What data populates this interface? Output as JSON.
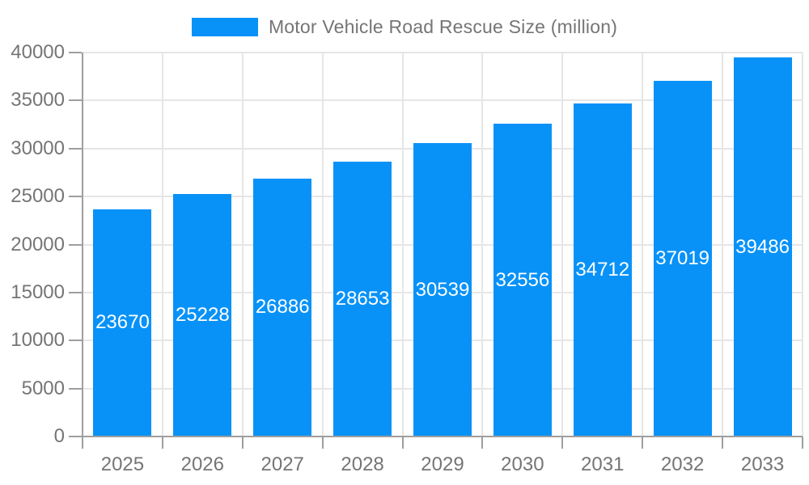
{
  "legend": {
    "position": "top",
    "swatch_color": "#0892f8"
  },
  "chart_data": {
    "type": "bar",
    "title": "",
    "series_name": "Motor Vehicle Road Rescue Size (million)",
    "categories": [
      "2025",
      "2026",
      "2027",
      "2028",
      "2029",
      "2030",
      "2031",
      "2032",
      "2033"
    ],
    "values": [
      23670,
      25228,
      26886,
      28653,
      30539,
      32556,
      34712,
      37019,
      39486
    ],
    "xlabel": "",
    "ylabel": "",
    "ylim": [
      0,
      40000
    ],
    "y_ticks": [
      0,
      5000,
      10000,
      15000,
      20000,
      25000,
      30000,
      35000,
      40000
    ],
    "grid": true,
    "legend_position": "top",
    "bar_color": "#0892f8",
    "grid_color": "#e6e6e6",
    "axis_color": "#9e9e9e",
    "tick_label_color": "#757575",
    "value_label_color": "#ffffff",
    "background_color": "#ffffff"
  }
}
